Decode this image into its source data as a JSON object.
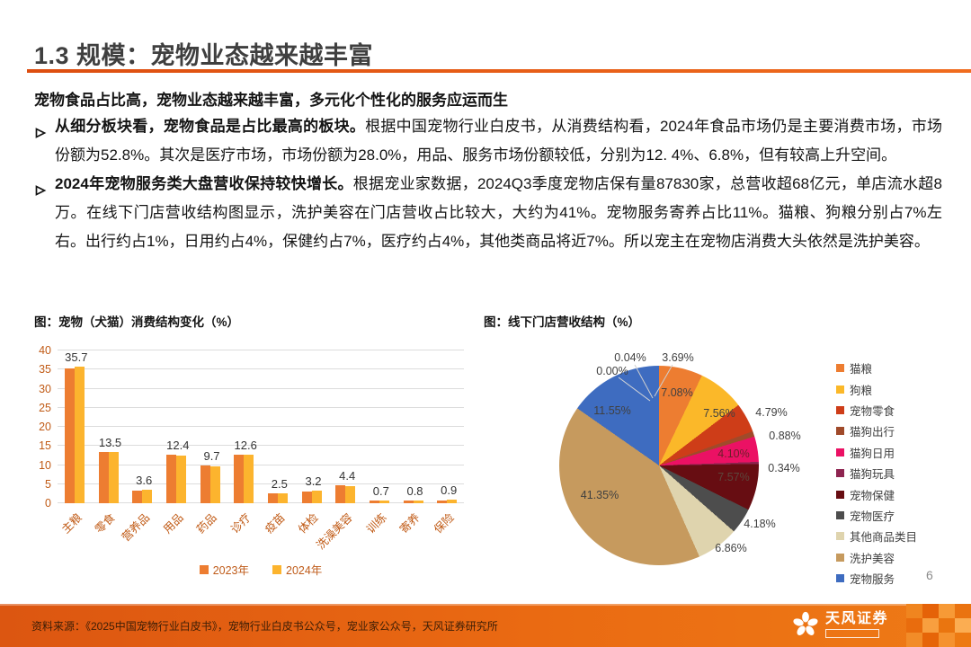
{
  "page": {
    "title": "1.3 规模：宠物业态越来越丰富",
    "page_number": "6"
  },
  "intro": {
    "subtitle": "宠物食品占比高，宠物业态越来越丰富，多元化个性化的服务应运而生",
    "bullets": [
      {
        "marker": "➢",
        "bold": "从细分板块看，宠物食品是占比最高的板块。",
        "text": "根据中国宠物行业白皮书，从消费结构看，2024年食品市场仍是主要消费市场，市场份额为52.8%。其次是医疗市场，市场份额为28.0%，用品、服务市场份额较低，分别为12. 4%、6.8%，但有较高上升空间。"
      },
      {
        "marker": "➢",
        "bold": "2024年宠物服务类大盘营收保持较快增长。",
        "text": "根据宠业家数据，2024Q3季度宠物店保有量87830家，总营收超68亿元，单店流水超8万。在线下门店营收结构图显示，洗护美容在门店营收占比较大，大约为41%。宠物服务寄养占比11%。猫粮、狗粮分别占7%左右。出行约占1%，日用约占4%，保健约占7%，医疗约占4%，其他类商品将近7%。所以宠主在宠物店消费大头依然是洗护美容。"
      }
    ]
  },
  "chart_data": [
    {
      "type": "bar",
      "title": "图：宠物（犬猫）消费结构变化（%）",
      "categories": [
        "主粮",
        "零食",
        "营养品",
        "用品",
        "药品",
        "诊疗",
        "疫苗",
        "体检",
        "洗澡美容",
        "训练",
        "寄养",
        "保险"
      ],
      "series": [
        {
          "name": "2023年",
          "color": "#ED7D31",
          "values": [
            35.2,
            13.5,
            3.3,
            12.7,
            9.8,
            12.8,
            2.6,
            3.1,
            4.6,
            0.7,
            0.8,
            0.8
          ]
        },
        {
          "name": "2024年",
          "color": "#FCB42E",
          "values": [
            35.7,
            13.5,
            3.6,
            12.4,
            9.7,
            12.6,
            2.5,
            3.2,
            4.4,
            0.7,
            0.8,
            0.9
          ]
        }
      ],
      "data_labels": [
        "35.7",
        "13.5",
        "3.6",
        "12.4",
        "9.7",
        "12.6",
        "2.5",
        "3.2",
        "4.4",
        "0.7",
        "0.8",
        "0.9"
      ],
      "ylim": [
        0,
        40
      ],
      "yticks": [
        0,
        5,
        10,
        15,
        20,
        25,
        30,
        35,
        40
      ],
      "grid": true,
      "legend_position": "bottom"
    },
    {
      "type": "pie",
      "title": "图：线下门店营收结构（%）",
      "legend_position": "right",
      "slices": [
        {
          "label": "猫粮",
          "value": 7.08,
          "display": "7.08%",
          "color": "#ED7D31",
          "in_legend": true
        },
        {
          "label": "狗粮",
          "value": 7.56,
          "display": "7.56%",
          "color": "#FBB829",
          "in_legend": true
        },
        {
          "label": "宠物零食",
          "value": 4.79,
          "display": "4.79%",
          "color": "#CE3D18",
          "in_legend": true
        },
        {
          "label": "猫狗出行",
          "value": 0.88,
          "display": "0.88%",
          "color": "#A04A2A",
          "in_legend": true
        },
        {
          "label": "猫狗日用",
          "value": 4.1,
          "display": "4.10%",
          "color": "#EB1164",
          "in_legend": true
        },
        {
          "label": "猫狗玩具",
          "value": 0.34,
          "display": "0.34%",
          "color": "#8E2450",
          "in_legend": true
        },
        {
          "label": "宠物保健",
          "value": 7.57,
          "display": "7.57%",
          "color": "#670D12",
          "in_legend": true
        },
        {
          "label": "宠物医疗",
          "value": 4.18,
          "display": "4.18%",
          "color": "#4D4D4D",
          "in_legend": true
        },
        {
          "label": "其他商品类目",
          "value": 6.86,
          "display": "6.86%",
          "color": "#DFD4AE",
          "in_legend": true
        },
        {
          "label": "洗护美容",
          "value": 41.35,
          "display": "41.35%",
          "color": "#C69A5E",
          "in_legend": true
        },
        {
          "label": "宠物服务",
          "value": 11.55,
          "display": "11.55%",
          "color": "#3E6CC0",
          "in_legend": true
        },
        {
          "label": "",
          "value": 0.0,
          "display": "0.00%",
          "color": "#3E6CC0",
          "in_legend": false
        },
        {
          "label": "",
          "value": 0.04,
          "display": "0.04%",
          "color": "#3E6CC0",
          "in_legend": false
        },
        {
          "label": "",
          "value": 3.69,
          "display": "3.69%",
          "color": "#3E6CC0",
          "in_legend": false
        }
      ]
    }
  ],
  "footer": {
    "source": "资料来源：《2025中国宠物行业白皮书》，宠物行业白皮书公众号，宠业家公众号，天风证券研究所",
    "brand": "天风证券"
  },
  "colors": {
    "accent_orange": "#E8541C",
    "axis_label_orange": "#C05A15",
    "title_gray": "#3F3F3F",
    "footer_gradient_left": "#DC5611",
    "footer_gradient_right": "#EE7A16",
    "gridline": "#DCDCDC",
    "label_gray": "#404040"
  }
}
